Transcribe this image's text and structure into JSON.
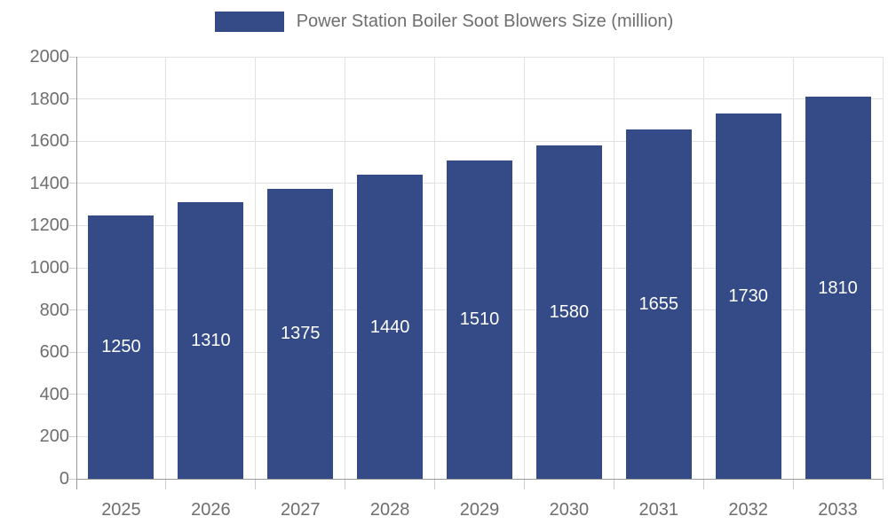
{
  "legend": {
    "label": "Power Station Boiler Soot Blowers Size (million)",
    "swatch_color": "#354B87"
  },
  "chart_data": {
    "type": "bar",
    "title": "",
    "categories": [
      "2025",
      "2026",
      "2027",
      "2028",
      "2029",
      "2030",
      "2031",
      "2032",
      "2033"
    ],
    "series": [
      {
        "name": "Power Station Boiler Soot Blowers Size (million)",
        "values": [
          1250,
          1310,
          1375,
          1440,
          1510,
          1580,
          1655,
          1730,
          1810
        ]
      }
    ],
    "bar_value_labels": [
      "1250",
      "1310",
      "1375",
      "1440",
      "1510",
      "1580",
      "1655",
      "1730",
      "1810"
    ],
    "xlabel": "",
    "ylabel": "",
    "ylim": [
      0,
      2000
    ],
    "ytick_step": 200,
    "ytick_labels": [
      "0",
      "200",
      "400",
      "600",
      "800",
      "1000",
      "1200",
      "1400",
      "1600",
      "1800",
      "2000"
    ],
    "grid": "horizontal and vertical gridlines on",
    "legend_position": "top-center",
    "colors": {
      "bar": "#354B87",
      "bar_label_text": "#ffffff",
      "grid_line": "#e2e2e2",
      "axis_line": "#999999",
      "tick_line": "#cccccc",
      "axis_text": "#6e6e6e",
      "legend_text": "#6e6e6e",
      "background": "#ffffff"
    }
  }
}
